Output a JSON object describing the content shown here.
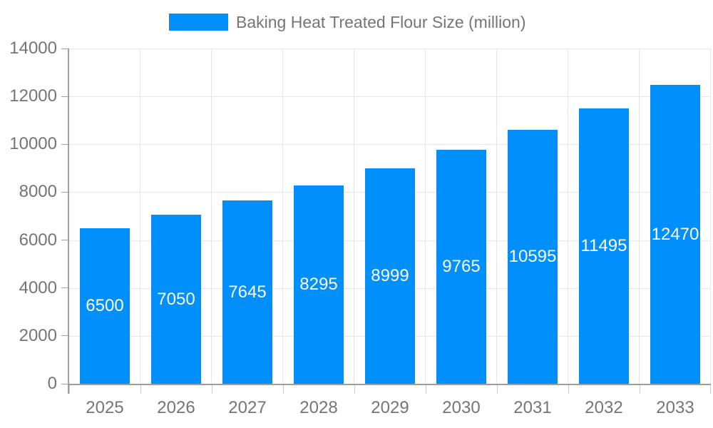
{
  "legend": {
    "label": "Baking Heat Treated Flour Size (million)"
  },
  "chart_data": {
    "type": "bar",
    "title": "Baking Heat Treated Flour Size (million)",
    "categories": [
      "2025",
      "2026",
      "2027",
      "2028",
      "2029",
      "2030",
      "2031",
      "2032",
      "2033"
    ],
    "values": [
      6500,
      7050,
      7645,
      8295,
      8999,
      9765,
      10595,
      11495,
      12470
    ],
    "series_name": "Baking Heat Treated Flour Size (million)",
    "xlabel": "",
    "ylabel": "",
    "ylim": [
      0,
      14000
    ],
    "yticks": [
      0,
      2000,
      4000,
      6000,
      8000,
      10000,
      12000,
      14000
    ],
    "grid": true,
    "legend_position": "top-center",
    "value_label_position": "inside-center",
    "colors": {
      "bar": "#008ffb",
      "value_label": "#ffffff",
      "axis_text": "#757575",
      "grid": "#e6e6e6",
      "axis_line": "#9e9e9e",
      "minor_tick": "#c9c9c9"
    }
  }
}
